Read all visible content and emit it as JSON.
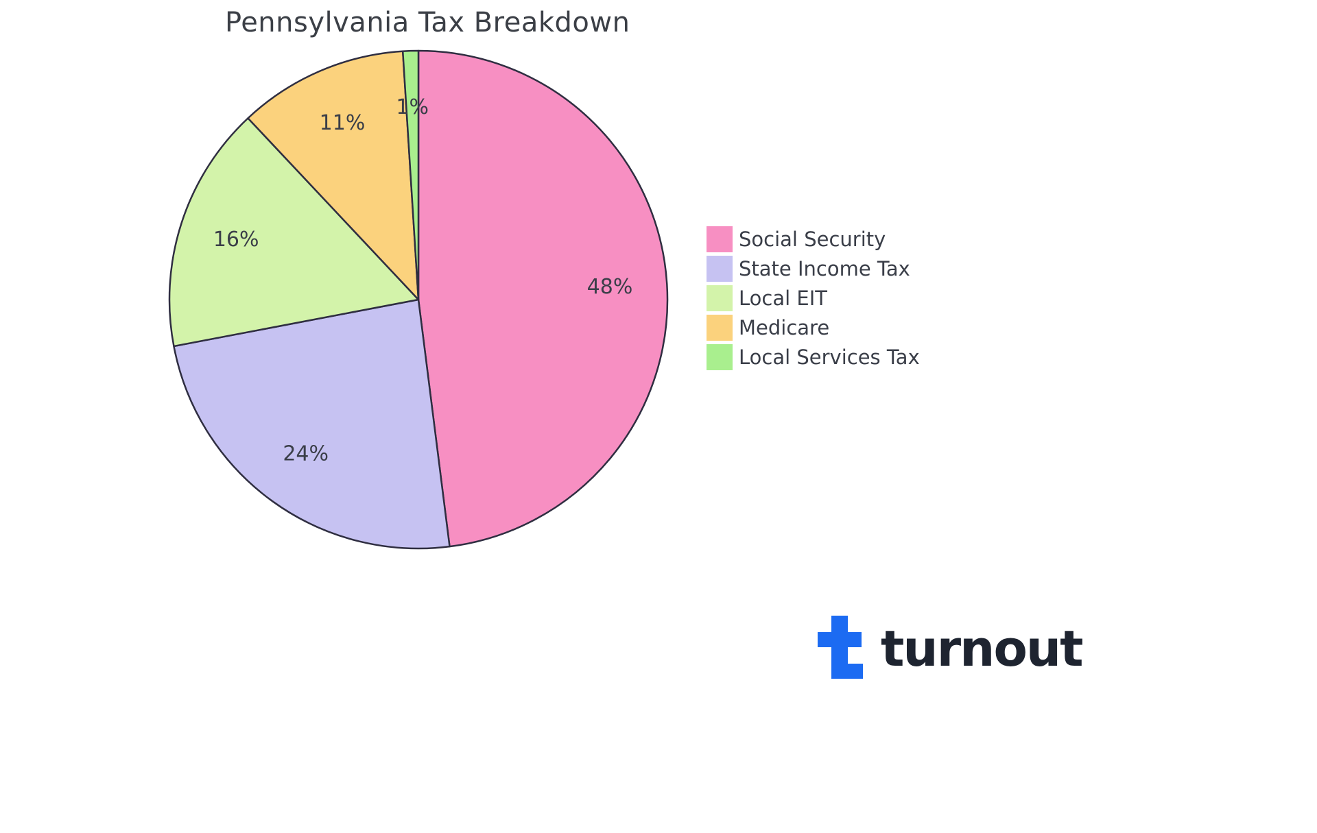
{
  "title": "Pennsylvania Tax Breakdown",
  "chart_data": {
    "type": "pie",
    "title": "Pennsylvania Tax Breakdown",
    "labels": [
      "Social Security",
      "State Income Tax",
      "Local EIT",
      "Medicare",
      "Local Services Tax"
    ],
    "values": [
      48,
      24,
      16,
      11,
      1
    ],
    "percent_labels": [
      "48%",
      "24%",
      "16%",
      "11%",
      "1%"
    ],
    "colors": [
      "#F78FC2",
      "#C6C2F2",
      "#D3F3AA",
      "#FBD27D",
      "#A9EF8E"
    ],
    "stroke_color": "#2F2E41",
    "start_angle_deg": 0,
    "direction": "clockwise",
    "legend_position": "right",
    "label_radius_fraction": 0.77
  },
  "branding": {
    "logo_text": "turnout",
    "logo_color": "#1C6BF2"
  }
}
